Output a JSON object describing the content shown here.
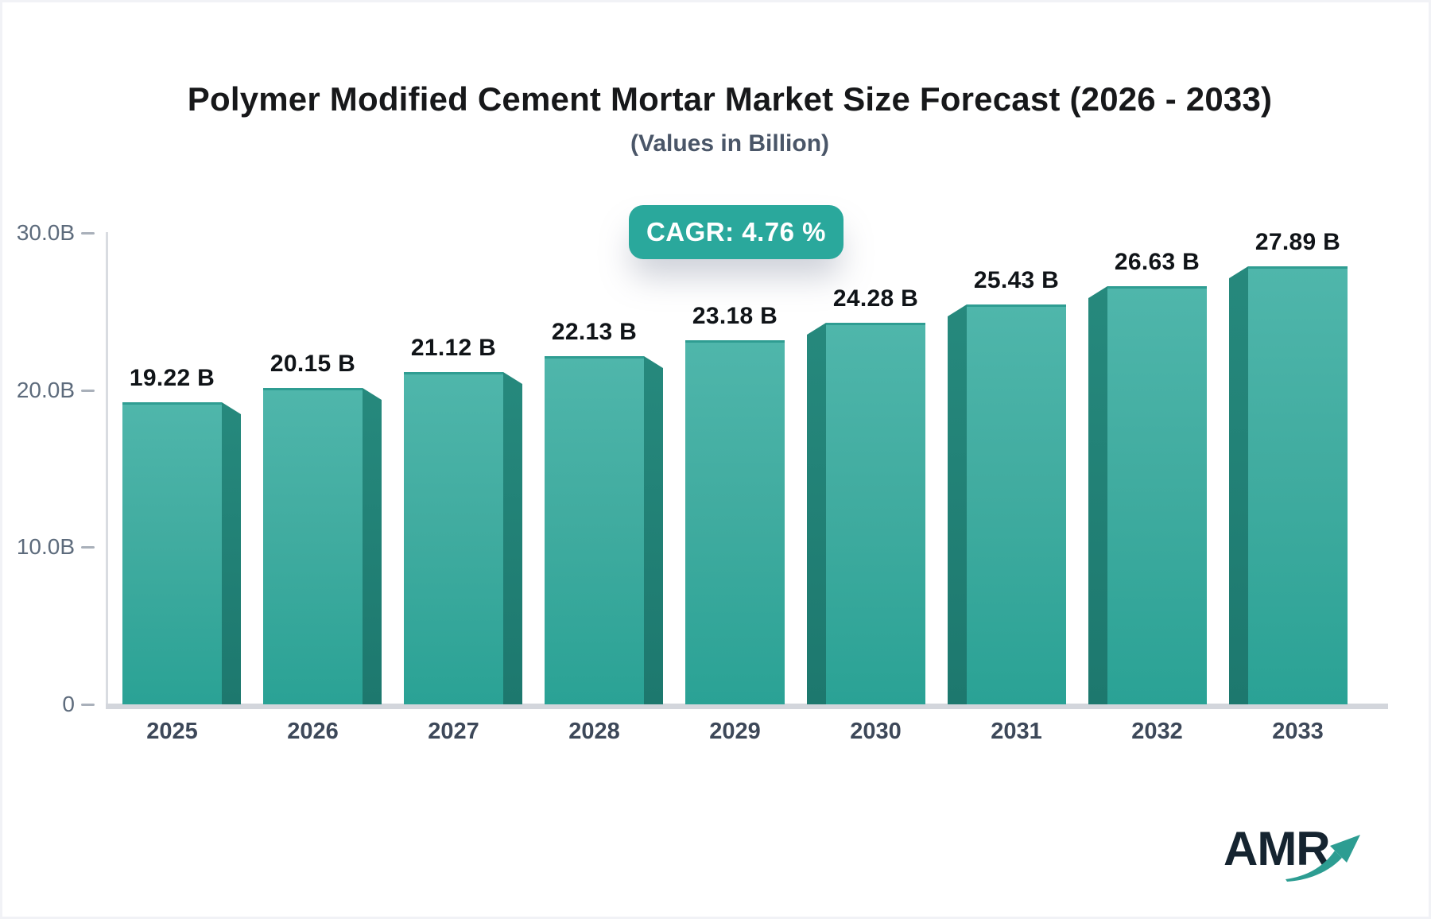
{
  "header": {
    "title": "Polymer Modified Cement Mortar Market Size Forecast (2026 - 2033)",
    "subtitle": "(Values in Billion)"
  },
  "badge": {
    "label": "CAGR: 4.76 %"
  },
  "logo": {
    "text": "AMR",
    "arrow_icon": "trend-up-arrow-icon",
    "arrow_color": "#2d9d92"
  },
  "colors": {
    "accent_teal": "#2aa89c",
    "bar_face_top": "#4fb6ab",
    "bar_face_bottom": "#2aa295",
    "bar_side": "#1f7d73",
    "axis_gray": "#d3d6dc",
    "tick_gray": "#a9b0ba",
    "y_label_color": "#5d6b7c",
    "x_label_color": "#3d4859",
    "value_label_color": "#101418"
  },
  "chart_data": {
    "type": "bar",
    "title": "Polymer Modified Cement Mortar Market Size Forecast (2026 - 2033)",
    "subtitle": "(Values in Billion)",
    "categories": [
      "2025",
      "2026",
      "2027",
      "2028",
      "2029",
      "2030",
      "2031",
      "2032",
      "2033"
    ],
    "values": [
      19.22,
      20.15,
      21.12,
      22.13,
      23.18,
      24.28,
      25.43,
      26.63,
      27.89
    ],
    "value_labels": [
      "19.22 B",
      "20.15 B",
      "21.12 B",
      "22.13 B",
      "23.18 B",
      "24.28 B",
      "25.43 B",
      "26.63 B",
      "27.89 B"
    ],
    "cagr_annotation": "CAGR: 4.76 %",
    "xlabel": "",
    "ylabel": "",
    "ylim": [
      0,
      30
    ],
    "yticks": [
      {
        "label": "30.0B",
        "value": 30
      },
      {
        "label": "20.0B",
        "value": 20
      },
      {
        "label": "10.0B",
        "value": 10
      },
      {
        "label": "0",
        "value": 0
      }
    ],
    "grid": false,
    "legend": "none",
    "bar_style": "3d-extruded",
    "units": "Billion"
  }
}
